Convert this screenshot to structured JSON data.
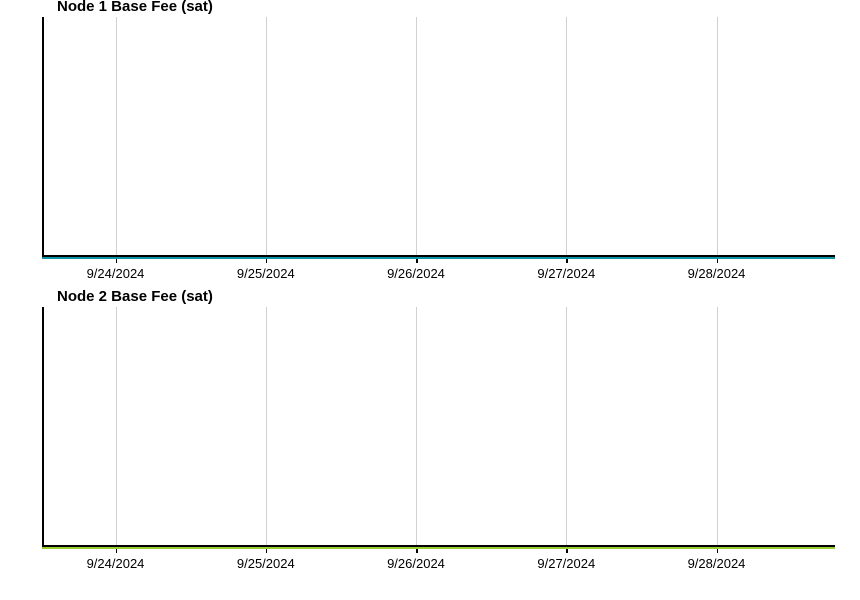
{
  "page": {
    "background": "#ffffff"
  },
  "colors": {
    "axis": "#000000",
    "gridline": "#d0d0d0",
    "text": "#000000",
    "node1_line": "#0e95a3",
    "node2_line": "#9acd32"
  },
  "charts": [
    {
      "title": "Node 1 Base Fee (sat)",
      "line_color": "#0e95a3",
      "x_labels": [
        "9/24/2024",
        "9/25/2024",
        "9/26/2024",
        "9/27/2024",
        "9/28/2024"
      ]
    },
    {
      "title": "Node 2 Base Fee (sat)",
      "line_color": "#9acd32",
      "x_labels": [
        "9/24/2024",
        "9/25/2024",
        "9/26/2024",
        "9/27/2024",
        "9/28/2024"
      ]
    }
  ],
  "chart_data": [
    {
      "type": "line",
      "title": "Node 1 Base Fee (sat)",
      "x": [
        "9/24/2024",
        "9/25/2024",
        "9/26/2024",
        "9/27/2024",
        "9/28/2024"
      ],
      "series": [
        {
          "name": "Node 1 Base Fee (sat)",
          "values": [
            0,
            0,
            0,
            0,
            0
          ]
        }
      ],
      "xlabel": "",
      "ylabel": "",
      "y_axis_ticks": "none visible",
      "ylim": "unlabeled; flat series rendered at baseline",
      "grid": "vertical gridlines only",
      "legend": "none",
      "line_color": "#0e95a3",
      "annotation": "constant flat line spanning full x-range at the bottom axis"
    },
    {
      "type": "line",
      "title": "Node 2 Base Fee (sat)",
      "x": [
        "9/24/2024",
        "9/25/2024",
        "9/26/2024",
        "9/27/2024",
        "9/28/2024"
      ],
      "series": [
        {
          "name": "Node 2 Base Fee (sat)",
          "values": [
            0,
            0,
            0,
            0,
            0
          ]
        }
      ],
      "xlabel": "",
      "ylabel": "",
      "y_axis_ticks": "none visible",
      "ylim": "unlabeled; flat series rendered at baseline",
      "grid": "vertical gridlines only",
      "legend": "none",
      "line_color": "#9acd32",
      "annotation": "constant flat line spanning full x-range at the bottom axis"
    }
  ]
}
